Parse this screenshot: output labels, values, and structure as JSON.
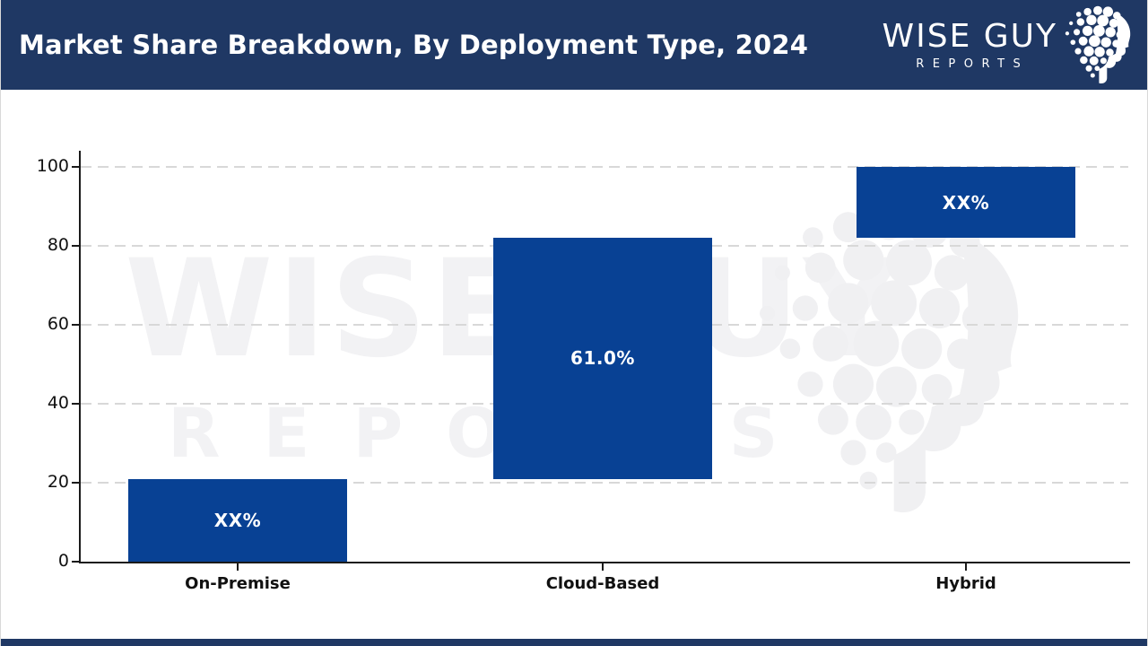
{
  "header": {
    "title": "Market Share Breakdown, By Deployment Type, 2024",
    "bg_color": "#1f3864",
    "logo": {
      "line1": "WISE GUY",
      "line2": "REPORTS"
    }
  },
  "watermark": {
    "line1": "WISE GUY",
    "line2": "REPORTS"
  },
  "footer": {
    "bg_color": "#1f3864"
  },
  "chart_data": {
    "type": "bar",
    "subtype": "floating-waterfall",
    "title": "Market Share Breakdown, By Deployment Type, 2024",
    "categories": [
      "On-Premise",
      "Cloud-Based",
      "Hybrid"
    ],
    "segments": [
      {
        "category": "On-Premise",
        "start": 0,
        "end": 21,
        "label": "XX%"
      },
      {
        "category": "Cloud-Based",
        "start": 21,
        "end": 82,
        "label": "61.0%"
      },
      {
        "category": "Hybrid",
        "start": 82,
        "end": 100,
        "label": "XX%"
      }
    ],
    "bar_labels": [
      "XX%",
      "61.0%",
      "XX%"
    ],
    "y_ticks": [
      0,
      20,
      40,
      60,
      80,
      100
    ],
    "ylim": [
      0,
      104
    ],
    "xlabel": "",
    "ylabel": "",
    "grid": "horizontal-dashed",
    "legend": "none",
    "bar_color": "#084194",
    "grid_color": "#d8d8d8",
    "axis_color": "#1a1a1a",
    "label_color": "#ffffff"
  }
}
